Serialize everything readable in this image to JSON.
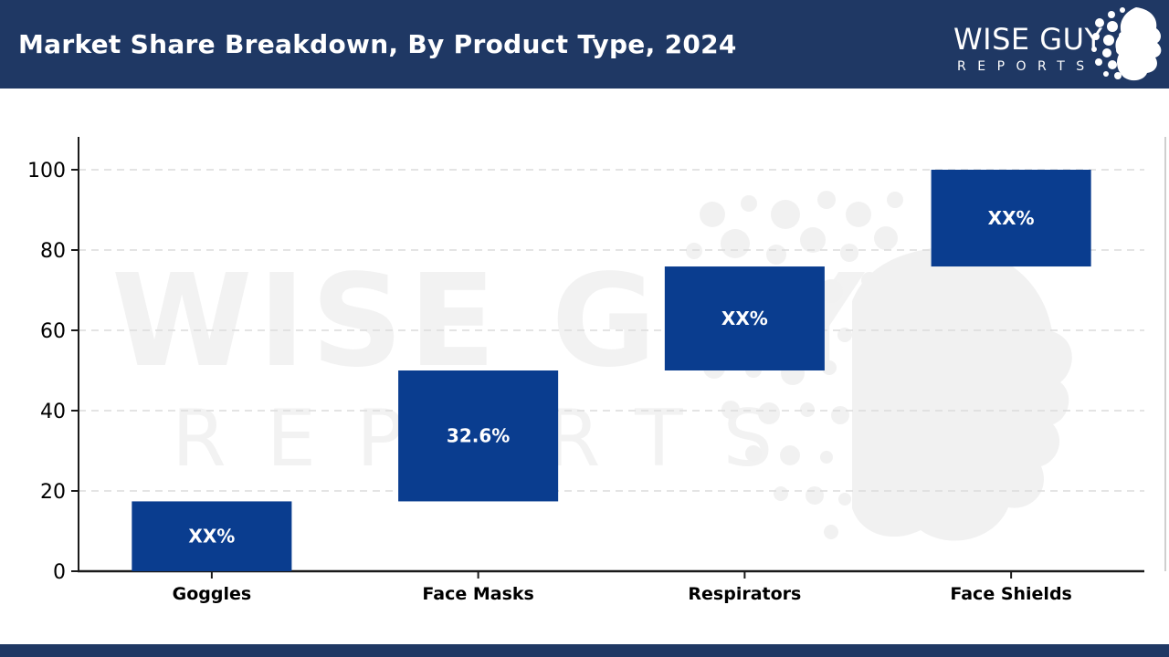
{
  "header": {
    "title": "Market Share Breakdown, By Product Type, 2024",
    "bg_color": "#1f3864",
    "logo": {
      "line1": "WISE GUY",
      "line2": "REPORTS"
    }
  },
  "watermark": {
    "line1": "WISE GUY",
    "line2": "REPORTS"
  },
  "footer": {
    "bg_color": "#1f3864"
  },
  "chart_data": {
    "type": "bar",
    "subtype": "floating-waterfall",
    "title": "Market Share Breakdown, By Product Type, 2024",
    "categories": [
      "Goggles",
      "Face Masks",
      "Respirators",
      "Face Shields"
    ],
    "segments": [
      {
        "category": "Goggles",
        "start": 0,
        "end": 17.4,
        "label": "XX%"
      },
      {
        "category": "Face Masks",
        "start": 17.4,
        "end": 50,
        "label": "32.6%"
      },
      {
        "category": "Respirators",
        "start": 50,
        "end": 75.9,
        "label": "XX%"
      },
      {
        "category": "Face Shields",
        "start": 75.9,
        "end": 100,
        "label": "XX%"
      }
    ],
    "xlabel": "",
    "ylabel": "",
    "ylim": [
      0,
      100
    ],
    "yticks": [
      0,
      20,
      40,
      60,
      80,
      100
    ],
    "grid": "horizontal-dashed",
    "legend": "none",
    "bar_color": "#0a3d8f",
    "label_color": "#ffffff",
    "axis_color": "#1a1a1a",
    "grid_color": "#dcdcdc"
  }
}
